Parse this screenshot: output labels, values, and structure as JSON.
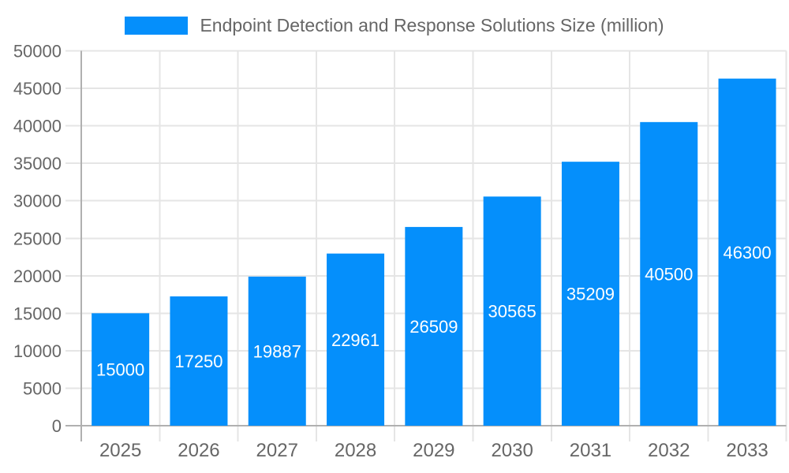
{
  "chart_data": {
    "type": "bar",
    "title": "Endpoint Detection and Response Solutions Size (million)",
    "legend": {
      "position": "top",
      "label": "Endpoint Detection and Response Solutions Size (million)"
    },
    "categories": [
      "2025",
      "2026",
      "2027",
      "2028",
      "2029",
      "2030",
      "2031",
      "2032",
      "2033"
    ],
    "series": [
      {
        "name": "Endpoint Detection and Response Solutions Size (million)",
        "values": [
          15000,
          17250,
          19887,
          22961,
          26509,
          30565,
          35209,
          40500,
          46300
        ]
      }
    ],
    "xlabel": "",
    "ylabel": "",
    "ylim": [
      0,
      50000
    ],
    "ytick_step": 5000,
    "ytick_labels": [
      "0",
      "5000",
      "10000",
      "15000",
      "20000",
      "25000",
      "30000",
      "35000",
      "40000",
      "45000",
      "50000"
    ],
    "grid": true,
    "value_labels_shown": true,
    "colors": {
      "bar": "#058FFB",
      "axis_text": "#666666",
      "gridline": "#e5e5e5",
      "axis_line": "#b0b0b0",
      "value_label": "#ffffff",
      "legend_text": "#666666",
      "background": "#ffffff"
    }
  }
}
